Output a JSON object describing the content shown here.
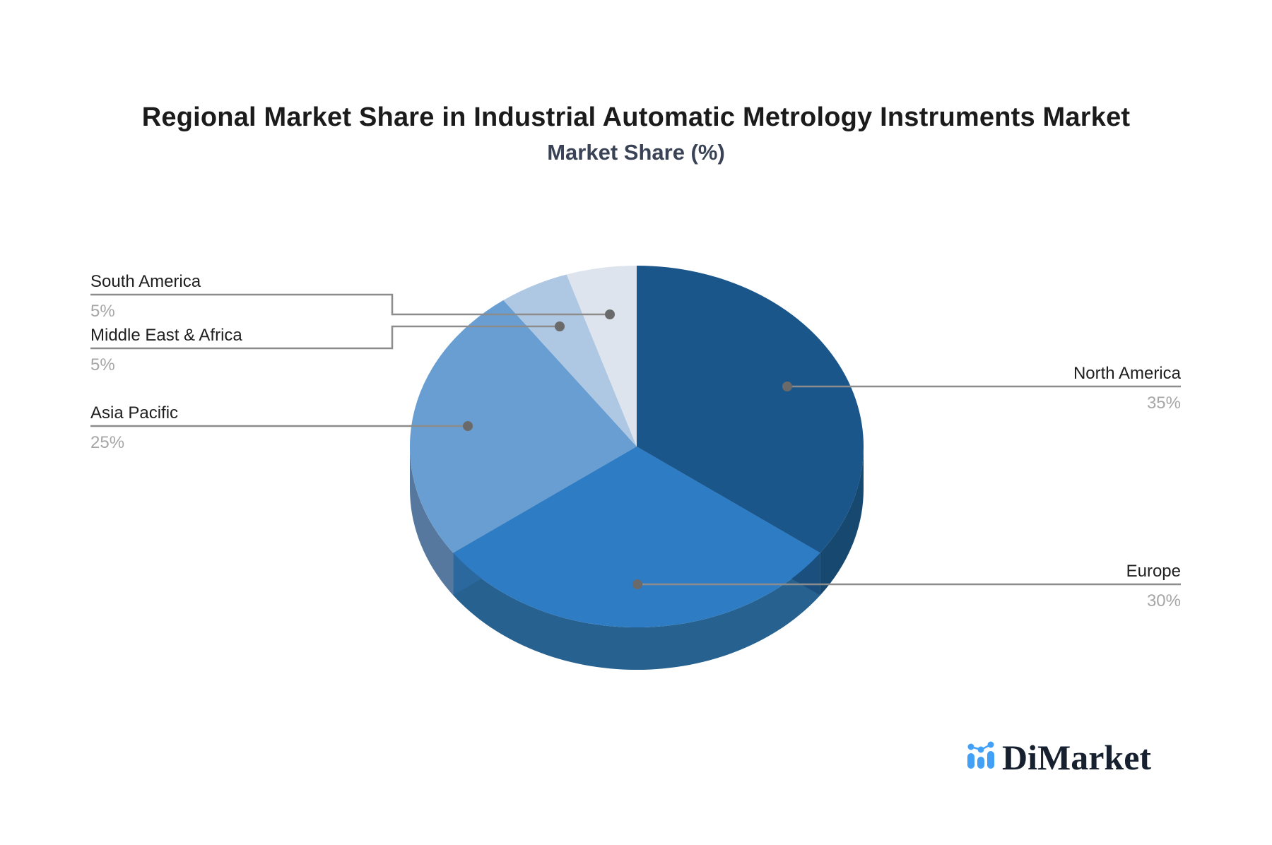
{
  "chart_data": {
    "type": "pie",
    "title": "Regional Market Share in Industrial Automatic Metrology Instruments Market",
    "subtitle": "Market Share (%)",
    "unit": "%",
    "start_angle_clockwise_from_top_deg": 0,
    "effect_3d": true,
    "legend_position": "callout-labels",
    "slices": [
      {
        "label": "North America",
        "value": 35,
        "pct_label": "35%",
        "color": "#1B568B",
        "side_color": "#164870",
        "edge_color": "#1B4F7E",
        "callout_side": "right"
      },
      {
        "label": "Europe",
        "value": 30,
        "pct_label": "30%",
        "color": "#2E7CC4",
        "side_color": "#26618F",
        "edge_color": "#2A689E",
        "callout_side": "right"
      },
      {
        "label": "Asia Pacific",
        "value": 25,
        "pct_label": "25%",
        "color": "#699ED2",
        "side_color": "#56789E",
        "callout_side": "left"
      },
      {
        "label": "Middle East & Africa",
        "value": 5,
        "pct_label": "5%",
        "color": "#AEC8E3",
        "callout_side": "left"
      },
      {
        "label": "South America",
        "value": 5,
        "pct_label": "5%",
        "color": "#DEE4ED",
        "callout_side": "left"
      }
    ],
    "style": {
      "leader_line_color": "#8C8C8C",
      "leader_dot_color": "#6A6A6A",
      "label_color": "#1F1F1F",
      "percent_color": "#A6A6A6"
    }
  },
  "branding": {
    "logo_text": "DiMarket",
    "logo_icon": "bar-line-chart-icon",
    "logo_text_color": "#16202F",
    "logo_accent_color": "#42A1F7"
  }
}
